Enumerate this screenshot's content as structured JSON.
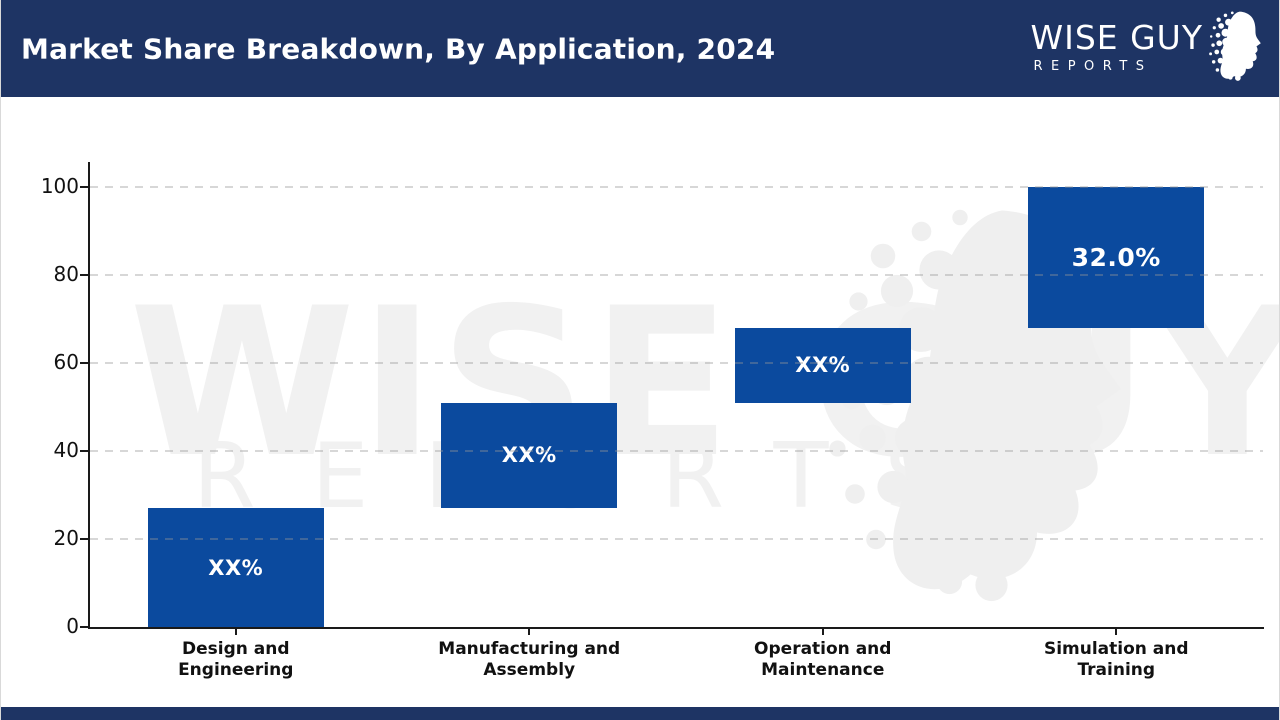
{
  "header": {
    "title": "Market Share Breakdown, By Application, 2024",
    "bg_color": "#1e3464",
    "logo": {
      "wordmark": "WISE GUY",
      "subtext": "REPORTS"
    }
  },
  "watermark": {
    "line1": "WISE GUY",
    "line2": "REPORTS"
  },
  "chart_data": {
    "type": "bar",
    "variant": "waterfall",
    "title": "Market Share Breakdown, By Application, 2024",
    "categories": [
      "Design and Engineering",
      "Manufacturing and Assembly",
      "Operation and Maintenance",
      "Simulation and Training"
    ],
    "values": [
      27,
      24,
      17,
      32
    ],
    "bars": [
      {
        "category": "Design and\nEngineering",
        "start": 0,
        "end": 27,
        "label": "XX%",
        "label_style": "normal"
      },
      {
        "category": "Manufacturing and\nAssembly",
        "start": 27,
        "end": 51,
        "label": "XX%",
        "label_style": "normal"
      },
      {
        "category": "Operation and\nMaintenance",
        "start": 51,
        "end": 68,
        "label": "XX%",
        "label_style": "normal"
      },
      {
        "category": "Simulation and\nTraining",
        "start": 68,
        "end": 100,
        "label": "32.0%",
        "label_style": "large"
      }
    ],
    "xlabel": "",
    "ylabel": "",
    "ylim": [
      0,
      100
    ],
    "yticks": [
      0,
      20,
      40,
      60,
      80,
      100
    ],
    "grid": "horizontal-dashed",
    "legend": "none",
    "bar_color": "#0b4a9e",
    "bar_label_color": "#ffffff",
    "axis_color": "#1a1a1a"
  }
}
